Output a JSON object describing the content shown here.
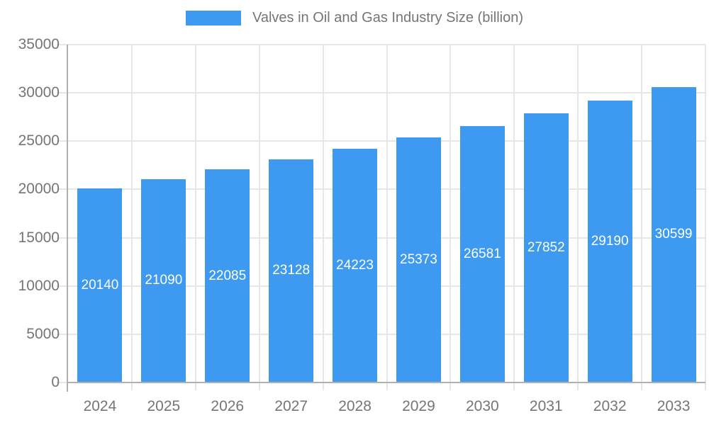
{
  "chart_data": {
    "type": "bar",
    "title": "",
    "legend": {
      "position": "top",
      "label": "Valves in Oil and Gas Industry Size (billion)"
    },
    "categories": [
      "2024",
      "2025",
      "2026",
      "2027",
      "2028",
      "2029",
      "2030",
      "2031",
      "2032",
      "2033"
    ],
    "values": [
      20140,
      21090,
      22085,
      23128,
      24223,
      25373,
      26581,
      27852,
      29190,
      30599
    ],
    "value_labels_inside_bars": true,
    "xlabel": "",
    "ylabel": "",
    "ylim": [
      0,
      35000
    ],
    "ytick_step": 5000,
    "yticks": [
      "0",
      "5000",
      "10000",
      "15000",
      "20000",
      "25000",
      "30000",
      "35000"
    ],
    "grid": true,
    "colors": {
      "bar": "#3d9af0",
      "gridline": "#e6e6e6",
      "axis_line": "#b0b0b0",
      "text": "#757575",
      "bar_label": "#ffffff",
      "background": "#ffffff"
    }
  }
}
